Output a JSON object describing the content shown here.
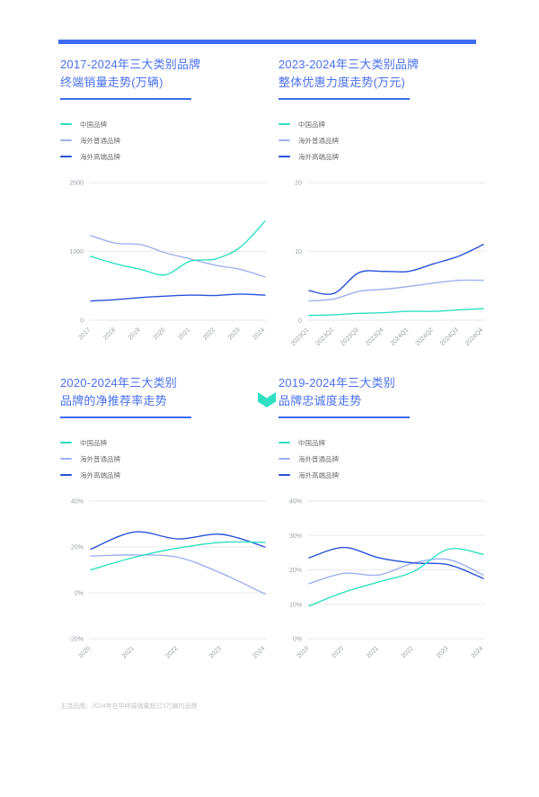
{
  "colors": {
    "accent_bar": "#3D6BF3",
    "title": "#4A6FF0",
    "underline": "#3D6BF3",
    "chevron": "#2EE0C2",
    "legend_text": "#6E6E6E",
    "axis_text": "#9BA0A8",
    "gridline": "#EAEAEA",
    "footnote_text": "#C4C4C4",
    "background": "#FFFFFF"
  },
  "series_colors": {
    "中国品牌": "#2EE0C2",
    "海外普通品牌": "#9FB0F0",
    "海外高端品牌": "#2A52DA"
  },
  "legend": [
    "中国品牌",
    "海外普通品牌",
    "海外高端品牌"
  ],
  "footnote": "主流品牌：2024年在华终端销量超过3万辆的品牌",
  "chart_data": [
    {
      "type": "line",
      "title_line1": "2017-2024年三大类别品牌",
      "title_line2": "终端销量走势(万辆)",
      "categories": [
        "2017",
        "2018",
        "2019",
        "2020",
        "2021",
        "2022",
        "2023",
        "2024"
      ],
      "series": [
        {
          "name": "中国品牌",
          "values": [
            930,
            820,
            740,
            660,
            860,
            890,
            1060,
            1440
          ]
        },
        {
          "name": "海外普通品牌",
          "values": [
            1230,
            1120,
            1100,
            980,
            890,
            800,
            740,
            630
          ]
        },
        {
          "name": "海外高端品牌",
          "values": [
            280,
            300,
            330,
            350,
            365,
            360,
            380,
            365
          ]
        }
      ],
      "ylim": [
        0,
        2000
      ],
      "yticks": [
        0,
        1000,
        2000
      ],
      "ytick_labels": [
        "0",
        "1000",
        "2000"
      ],
      "grid": true,
      "legend_position": "top-left"
    },
    {
      "type": "line",
      "title_line1": "2023-2024年三大类别品牌",
      "title_line2": "整体优惠力度走势(万元)",
      "categories": [
        "2023Q1",
        "2023Q2",
        "2023Q3",
        "2023Q4",
        "2024Q1",
        "2024Q2",
        "2024Q3",
        "2024Q4"
      ],
      "series": [
        {
          "name": "中国品牌",
          "values": [
            0.7,
            0.8,
            1.0,
            1.1,
            1.3,
            1.3,
            1.5,
            1.7
          ]
        },
        {
          "name": "海外普通品牌",
          "values": [
            2.8,
            3.1,
            4.2,
            4.5,
            4.9,
            5.4,
            5.8,
            5.8
          ]
        },
        {
          "name": "海外高端品牌",
          "values": [
            4.3,
            3.9,
            6.9,
            7.1,
            7.1,
            8.2,
            9.3,
            11.0
          ]
        }
      ],
      "ylim": [
        0,
        20
      ],
      "yticks": [
        0,
        10,
        20
      ],
      "ytick_labels": [
        "0",
        "10",
        "20"
      ],
      "grid": true,
      "legend_position": "top-left"
    },
    {
      "type": "line",
      "title_line1": "2020-2024年三大类别",
      "title_line2": "品牌的净推荐率走势",
      "categories": [
        "2020",
        "2021",
        "2022",
        "2023",
        "2024"
      ],
      "series": [
        {
          "name": "中国品牌",
          "values": [
            10,
            15.5,
            19.5,
            22,
            22
          ]
        },
        {
          "name": "海外普通品牌",
          "values": [
            16,
            16.5,
            15.5,
            8.5,
            -0.5
          ]
        },
        {
          "name": "海外高端品牌",
          "values": [
            19,
            26.5,
            23.5,
            25.5,
            20
          ]
        }
      ],
      "ylim": [
        -20,
        40
      ],
      "yticks": [
        -20,
        0,
        20,
        40
      ],
      "ytick_labels": [
        "-20%",
        "0%",
        "20%",
        "40%"
      ],
      "grid": true,
      "legend_position": "top-left"
    },
    {
      "type": "line",
      "title_line1": "2019-2024年三大类别",
      "title_line2": "品牌忠诚度走势",
      "categories": [
        "2019",
        "2020",
        "2021",
        "2022",
        "2023",
        "2024"
      ],
      "series": [
        {
          "name": "中国品牌",
          "values": [
            9.5,
            13.5,
            16.5,
            19.5,
            26,
            24.5
          ]
        },
        {
          "name": "海外普通品牌",
          "values": [
            16,
            19,
            18.5,
            22,
            23,
            18.5
          ]
        },
        {
          "name": "海外高端品牌",
          "values": [
            23.5,
            26.5,
            23.5,
            22,
            21.5,
            17.5
          ]
        }
      ],
      "ylim": [
        0,
        40
      ],
      "yticks": [
        0,
        10,
        20,
        30,
        40
      ],
      "ytick_labels": [
        "0%",
        "10%",
        "20%",
        "30%",
        "40%"
      ],
      "grid": true,
      "legend_position": "top-left"
    }
  ]
}
